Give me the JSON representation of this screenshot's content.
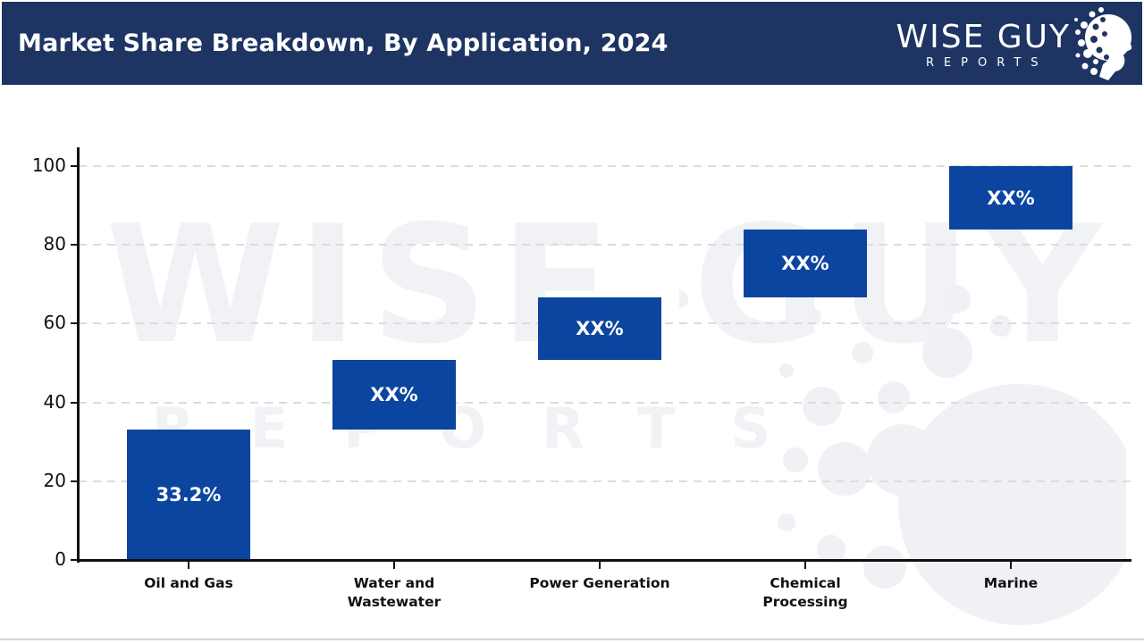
{
  "header": {
    "title": "Market Share Breakdown, By Application, 2024",
    "logo": {
      "brand": "WISE GUY",
      "sub": "REPORTS"
    }
  },
  "watermark": {
    "line1": "WISE GUY",
    "line2": "REPORTS"
  },
  "colors": {
    "header_bg": "#1e3563",
    "bar": "#0c45a0",
    "bar_label": "#ffffff",
    "gridline": "#dcdcdc",
    "axis": "#111111",
    "watermark": "#f1f2f5"
  },
  "chart_data": {
    "type": "bar",
    "subtype": "waterfall",
    "title": "Market Share Breakdown, By Application, 2024",
    "xlabel": "",
    "ylabel": "",
    "ylim": [
      0,
      105
    ],
    "yticks": [
      0,
      20,
      40,
      60,
      80,
      100
    ],
    "grid": "horizontal dashed",
    "legend": "none",
    "categories": [
      "Oil and Gas",
      "Water and Wastewater",
      "Power Generation",
      "Chemical Processing",
      "Marine"
    ],
    "categories_lines": [
      [
        "Oil and Gas"
      ],
      [
        "Water and",
        "Wastewater"
      ],
      [
        "Power Generation"
      ],
      [
        "Chemical",
        "Processing"
      ],
      [
        "Marine"
      ]
    ],
    "bars": [
      {
        "category": "Oil and Gas",
        "start": 0,
        "end": 33.2,
        "label": "33.2%"
      },
      {
        "category": "Water and Wastewater",
        "start": 33.2,
        "end": 50.9,
        "label": "XX%"
      },
      {
        "category": "Power Generation",
        "start": 50.9,
        "end": 66.7,
        "label": "XX%"
      },
      {
        "category": "Chemical Processing",
        "start": 66.7,
        "end": 83.9,
        "label": "XX%"
      },
      {
        "category": "Marine",
        "start": 83.9,
        "end": 100,
        "label": "XX%"
      }
    ]
  }
}
